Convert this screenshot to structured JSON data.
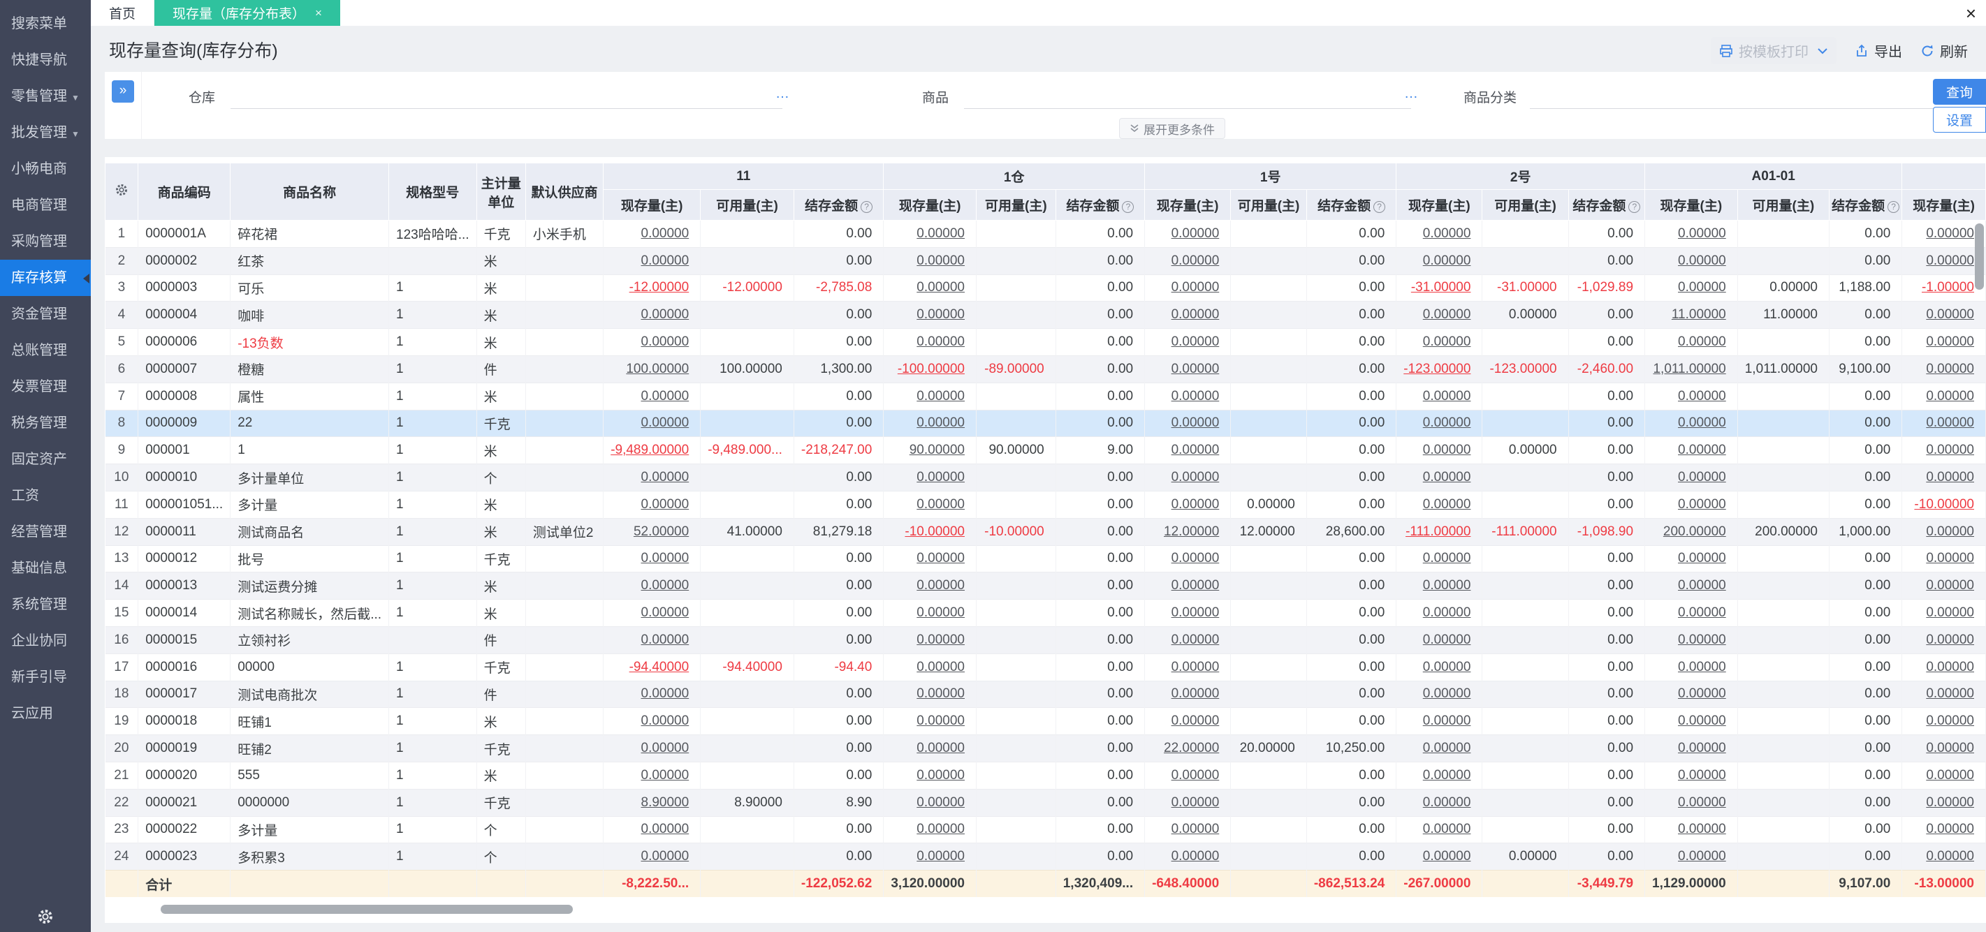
{
  "colors": {
    "accent": "#1a7ce5",
    "tab_green": "#2fc29e",
    "negative_red": "#ee3b43",
    "sidebar_bg": "#404659",
    "total_bg": "#fcf3e1",
    "header_bg": "#e9ecf4",
    "highlight_row": "#d5e8fb"
  },
  "window": {
    "close_label": "×"
  },
  "sidebar": {
    "items": [
      {
        "label": "搜索菜单"
      },
      {
        "label": "快捷导航"
      },
      {
        "label": "零售管理",
        "caret": true
      },
      {
        "label": "批发管理",
        "caret": true
      },
      {
        "label": "小畅电商"
      },
      {
        "label": "电商管理"
      },
      {
        "label": "采购管理"
      },
      {
        "label": "库存核算",
        "active": true
      },
      {
        "label": "资金管理"
      },
      {
        "label": "总账管理"
      },
      {
        "label": "发票管理"
      },
      {
        "label": "税务管理"
      },
      {
        "label": "固定资产"
      },
      {
        "label": "工资"
      },
      {
        "label": "经营管理"
      },
      {
        "label": "基础信息"
      },
      {
        "label": "系统管理"
      },
      {
        "label": "企业协同"
      },
      {
        "label": "新手引导"
      },
      {
        "label": "云应用"
      }
    ]
  },
  "tabs": {
    "home": "首页",
    "current": "现存量（库存分布表）",
    "close": "×"
  },
  "page": {
    "title": "现存量查询(库存分布)"
  },
  "toolbar": {
    "print_label": "按模板打印",
    "export_label": "导出",
    "refresh_label": "刷新"
  },
  "filters": {
    "expander": "»",
    "warehouse_label": "仓库",
    "product_label": "商品",
    "category_label": "商品分类",
    "ellipsis": "…",
    "search_button": "查询",
    "settings_button": "设置",
    "expand_more": "展开更多条件"
  },
  "table": {
    "frozen_columns": [
      "商品编码",
      "商品名称",
      "规格型号",
      "主计量单位",
      "默认供应商"
    ],
    "measure_columns": [
      "现存量(主)",
      "可用量(主)",
      "结存金额"
    ],
    "amount_info_mark": "?",
    "warehouse_groups": [
      "11",
      "1仓",
      "1号",
      "2号",
      "A01-01",
      ""
    ],
    "total_label": "合计",
    "rows": [
      {
        "no": 1,
        "code": "0000001A",
        "name": "碎花裙",
        "spec": "123哈哈哈...",
        "unit": "千克",
        "supplier": "小米手机",
        "w": [
          [
            "0.00000",
            "",
            "0.00"
          ],
          [
            "0.00000",
            "",
            "0.00"
          ],
          [
            "0.00000",
            "",
            "0.00"
          ],
          [
            "0.00000",
            "",
            "0.00"
          ],
          [
            "0.00000",
            "",
            "0.00"
          ],
          [
            "0.00000"
          ]
        ]
      },
      {
        "no": 2,
        "code": "0000002",
        "name": "红茶",
        "spec": "",
        "unit": "米",
        "supplier": "",
        "w": [
          [
            "0.00000",
            "",
            "0.00"
          ],
          [
            "0.00000",
            "",
            "0.00"
          ],
          [
            "0.00000",
            "",
            "0.00"
          ],
          [
            "0.00000",
            "",
            "0.00"
          ],
          [
            "0.00000",
            "",
            "0.00"
          ],
          [
            "0.00000"
          ]
        ]
      },
      {
        "no": 3,
        "code": "0000003",
        "name": "可乐",
        "spec": "1",
        "unit": "米",
        "supplier": "",
        "w": [
          [
            "-12.00000",
            "-12.00000",
            "-2,785.08"
          ],
          [
            "0.00000",
            "",
            "0.00"
          ],
          [
            "0.00000",
            "",
            "0.00"
          ],
          [
            "-31.00000",
            "-31.00000",
            "-1,029.89"
          ],
          [
            "0.00000",
            "0.00000",
            "1,188.00"
          ],
          [
            "-1.00000"
          ]
        ]
      },
      {
        "no": 4,
        "code": "0000004",
        "name": "咖啡",
        "spec": "1",
        "unit": "米",
        "supplier": "",
        "w": [
          [
            "0.00000",
            "",
            "0.00"
          ],
          [
            "0.00000",
            "",
            "0.00"
          ],
          [
            "0.00000",
            "",
            "0.00"
          ],
          [
            "0.00000",
            "0.00000",
            "0.00"
          ],
          [
            "11.00000",
            "11.00000",
            "0.00"
          ],
          [
            "0.00000"
          ]
        ]
      },
      {
        "no": 5,
        "code": "0000006",
        "name": "-13负数",
        "red_name": true,
        "spec": "1",
        "unit": "米",
        "supplier": "",
        "w": [
          [
            "0.00000",
            "",
            "0.00"
          ],
          [
            "0.00000",
            "",
            "0.00"
          ],
          [
            "0.00000",
            "",
            "0.00"
          ],
          [
            "0.00000",
            "",
            "0.00"
          ],
          [
            "0.00000",
            "",
            "0.00"
          ],
          [
            "0.00000"
          ]
        ]
      },
      {
        "no": 6,
        "code": "0000007",
        "name": "橙糖",
        "spec": "1",
        "unit": "件",
        "supplier": "",
        "w": [
          [
            "100.00000",
            "100.00000",
            "1,300.00"
          ],
          [
            "-100.00000",
            "-89.00000",
            "0.00"
          ],
          [
            "0.00000",
            "",
            "0.00"
          ],
          [
            "-123.00000",
            "-123.00000",
            "-2,460.00"
          ],
          [
            "1,011.00000",
            "1,011.00000",
            "9,100.00"
          ],
          [
            "0.00000"
          ]
        ]
      },
      {
        "no": 7,
        "code": "0000008",
        "name": "属性",
        "spec": "1",
        "unit": "米",
        "supplier": "",
        "w": [
          [
            "0.00000",
            "",
            "0.00"
          ],
          [
            "0.00000",
            "",
            "0.00"
          ],
          [
            "0.00000",
            "",
            "0.00"
          ],
          [
            "0.00000",
            "",
            "0.00"
          ],
          [
            "0.00000",
            "",
            "0.00"
          ],
          [
            "0.00000"
          ]
        ]
      },
      {
        "no": 8,
        "code": "0000009",
        "name": "22",
        "spec": "1",
        "unit": "千克",
        "supplier": "",
        "hl": true,
        "w": [
          [
            "0.00000",
            "",
            "0.00"
          ],
          [
            "0.00000",
            "",
            "0.00"
          ],
          [
            "0.00000",
            "",
            "0.00"
          ],
          [
            "0.00000",
            "",
            "0.00"
          ],
          [
            "0.00000",
            "",
            "0.00"
          ],
          [
            "0.00000"
          ]
        ]
      },
      {
        "no": 9,
        "code": "000001",
        "name": "1",
        "spec": "1",
        "unit": "米",
        "supplier": "",
        "w": [
          [
            "-9,489.00000",
            "-9,489.000...",
            "-218,247.00"
          ],
          [
            "90.00000",
            "90.00000",
            "9.00"
          ],
          [
            "0.00000",
            "",
            "0.00"
          ],
          [
            "0.00000",
            "0.00000",
            "0.00"
          ],
          [
            "0.00000",
            "",
            "0.00"
          ],
          [
            "0.00000"
          ]
        ]
      },
      {
        "no": 10,
        "code": "0000010",
        "name": "多计量单位",
        "spec": "1",
        "unit": "个",
        "supplier": "",
        "w": [
          [
            "0.00000",
            "",
            "0.00"
          ],
          [
            "0.00000",
            "",
            "0.00"
          ],
          [
            "0.00000",
            "",
            "0.00"
          ],
          [
            "0.00000",
            "",
            "0.00"
          ],
          [
            "0.00000",
            "",
            "0.00"
          ],
          [
            "0.00000"
          ]
        ]
      },
      {
        "no": 11,
        "code": "000001051...",
        "name": "多计量",
        "spec": "1",
        "unit": "米",
        "supplier": "",
        "w": [
          [
            "0.00000",
            "",
            "0.00"
          ],
          [
            "0.00000",
            "",
            "0.00"
          ],
          [
            "0.00000",
            "0.00000",
            "0.00"
          ],
          [
            "0.00000",
            "",
            "0.00"
          ],
          [
            "0.00000",
            "",
            "0.00"
          ],
          [
            "-10.00000"
          ]
        ]
      },
      {
        "no": 12,
        "code": "0000011",
        "name": "测试商品名",
        "spec": "1",
        "unit": "米",
        "supplier": "测试单位2",
        "w": [
          [
            "52.00000",
            "41.00000",
            "81,279.18"
          ],
          [
            "-10.00000",
            "-10.00000",
            "0.00"
          ],
          [
            "12.00000",
            "12.00000",
            "28,600.00"
          ],
          [
            "-111.00000",
            "-111.00000",
            "-1,098.90"
          ],
          [
            "200.00000",
            "200.00000",
            "1,000.00"
          ],
          [
            "0.00000"
          ]
        ]
      },
      {
        "no": 13,
        "code": "0000012",
        "name": "批号",
        "spec": "1",
        "unit": "千克",
        "supplier": "",
        "w": [
          [
            "0.00000",
            "",
            "0.00"
          ],
          [
            "0.00000",
            "",
            "0.00"
          ],
          [
            "0.00000",
            "",
            "0.00"
          ],
          [
            "0.00000",
            "",
            "0.00"
          ],
          [
            "0.00000",
            "",
            "0.00"
          ],
          [
            "0.00000"
          ]
        ]
      },
      {
        "no": 14,
        "code": "0000013",
        "name": "测试运费分摊",
        "spec": "1",
        "unit": "米",
        "supplier": "",
        "w": [
          [
            "0.00000",
            "",
            "0.00"
          ],
          [
            "0.00000",
            "",
            "0.00"
          ],
          [
            "0.00000",
            "",
            "0.00"
          ],
          [
            "0.00000",
            "",
            "0.00"
          ],
          [
            "0.00000",
            "",
            "0.00"
          ],
          [
            "0.00000"
          ]
        ]
      },
      {
        "no": 15,
        "code": "0000014",
        "name": "测试名称贼长，然后截...",
        "spec": "1",
        "unit": "米",
        "supplier": "",
        "w": [
          [
            "0.00000",
            "",
            "0.00"
          ],
          [
            "0.00000",
            "",
            "0.00"
          ],
          [
            "0.00000",
            "",
            "0.00"
          ],
          [
            "0.00000",
            "",
            "0.00"
          ],
          [
            "0.00000",
            "",
            "0.00"
          ],
          [
            "0.00000"
          ]
        ]
      },
      {
        "no": 16,
        "code": "0000015",
        "name": "立领衬衫",
        "spec": "",
        "unit": "件",
        "supplier": "",
        "w": [
          [
            "0.00000",
            "",
            "0.00"
          ],
          [
            "0.00000",
            "",
            "0.00"
          ],
          [
            "0.00000",
            "",
            "0.00"
          ],
          [
            "0.00000",
            "",
            "0.00"
          ],
          [
            "0.00000",
            "",
            "0.00"
          ],
          [
            "0.00000"
          ]
        ]
      },
      {
        "no": 17,
        "code": "0000016",
        "name": "00000",
        "spec": "1",
        "unit": "千克",
        "supplier": "",
        "w": [
          [
            "-94.40000",
            "-94.40000",
            "-94.40"
          ],
          [
            "0.00000",
            "",
            "0.00"
          ],
          [
            "0.00000",
            "",
            "0.00"
          ],
          [
            "0.00000",
            "",
            "0.00"
          ],
          [
            "0.00000",
            "",
            "0.00"
          ],
          [
            "0.00000"
          ]
        ]
      },
      {
        "no": 18,
        "code": "0000017",
        "name": "测试电商批次",
        "spec": "1",
        "unit": "件",
        "supplier": "",
        "w": [
          [
            "0.00000",
            "",
            "0.00"
          ],
          [
            "0.00000",
            "",
            "0.00"
          ],
          [
            "0.00000",
            "",
            "0.00"
          ],
          [
            "0.00000",
            "",
            "0.00"
          ],
          [
            "0.00000",
            "",
            "0.00"
          ],
          [
            "0.00000"
          ]
        ]
      },
      {
        "no": 19,
        "code": "0000018",
        "name": "旺铺1",
        "spec": "1",
        "unit": "米",
        "supplier": "",
        "w": [
          [
            "0.00000",
            "",
            "0.00"
          ],
          [
            "0.00000",
            "",
            "0.00"
          ],
          [
            "0.00000",
            "",
            "0.00"
          ],
          [
            "0.00000",
            "",
            "0.00"
          ],
          [
            "0.00000",
            "",
            "0.00"
          ],
          [
            "0.00000"
          ]
        ]
      },
      {
        "no": 20,
        "code": "0000019",
        "name": "旺铺2",
        "spec": "1",
        "unit": "千克",
        "supplier": "",
        "w": [
          [
            "0.00000",
            "",
            "0.00"
          ],
          [
            "0.00000",
            "",
            "0.00"
          ],
          [
            "22.00000",
            "20.00000",
            "10,250.00"
          ],
          [
            "0.00000",
            "",
            "0.00"
          ],
          [
            "0.00000",
            "",
            "0.00"
          ],
          [
            "0.00000"
          ]
        ]
      },
      {
        "no": 21,
        "code": "0000020",
        "name": "555",
        "spec": "1",
        "unit": "米",
        "supplier": "",
        "w": [
          [
            "0.00000",
            "",
            "0.00"
          ],
          [
            "0.00000",
            "",
            "0.00"
          ],
          [
            "0.00000",
            "",
            "0.00"
          ],
          [
            "0.00000",
            "",
            "0.00"
          ],
          [
            "0.00000",
            "",
            "0.00"
          ],
          [
            "0.00000"
          ]
        ]
      },
      {
        "no": 22,
        "code": "0000021",
        "name": "0000000",
        "spec": "1",
        "unit": "千克",
        "supplier": "",
        "w": [
          [
            "8.90000",
            "8.90000",
            "8.90"
          ],
          [
            "0.00000",
            "",
            "0.00"
          ],
          [
            "0.00000",
            "",
            "0.00"
          ],
          [
            "0.00000",
            "",
            "0.00"
          ],
          [
            "0.00000",
            "",
            "0.00"
          ],
          [
            "0.00000"
          ]
        ]
      },
      {
        "no": 23,
        "code": "0000022",
        "name": "多计量",
        "spec": "1",
        "unit": "个",
        "supplier": "",
        "w": [
          [
            "0.00000",
            "",
            "0.00"
          ],
          [
            "0.00000",
            "",
            "0.00"
          ],
          [
            "0.00000",
            "",
            "0.00"
          ],
          [
            "0.00000",
            "",
            "0.00"
          ],
          [
            "0.00000",
            "",
            "0.00"
          ],
          [
            "0.00000"
          ]
        ]
      },
      {
        "no": 24,
        "code": "0000023",
        "name": "多积累3",
        "spec": "1",
        "unit": "个",
        "supplier": "",
        "w": [
          [
            "0.00000",
            "",
            "0.00"
          ],
          [
            "0.00000",
            "",
            "0.00"
          ],
          [
            "0.00000",
            "",
            "0.00"
          ],
          [
            "0.00000",
            "0.00000",
            "0.00"
          ],
          [
            "0.00000",
            "",
            "0.00"
          ],
          [
            "0.00000"
          ]
        ]
      }
    ],
    "total": [
      [
        "-8,222.50...",
        "",
        "-122,052.62"
      ],
      [
        "3,120.00000",
        "",
        "1,320,409..."
      ],
      [
        "-648.40000",
        "",
        "-862,513.24"
      ],
      [
        "-267.00000",
        "",
        "-3,449.79"
      ],
      [
        "1,129.00000",
        "",
        "9,107.00"
      ],
      [
        "-13.00000"
      ]
    ]
  }
}
